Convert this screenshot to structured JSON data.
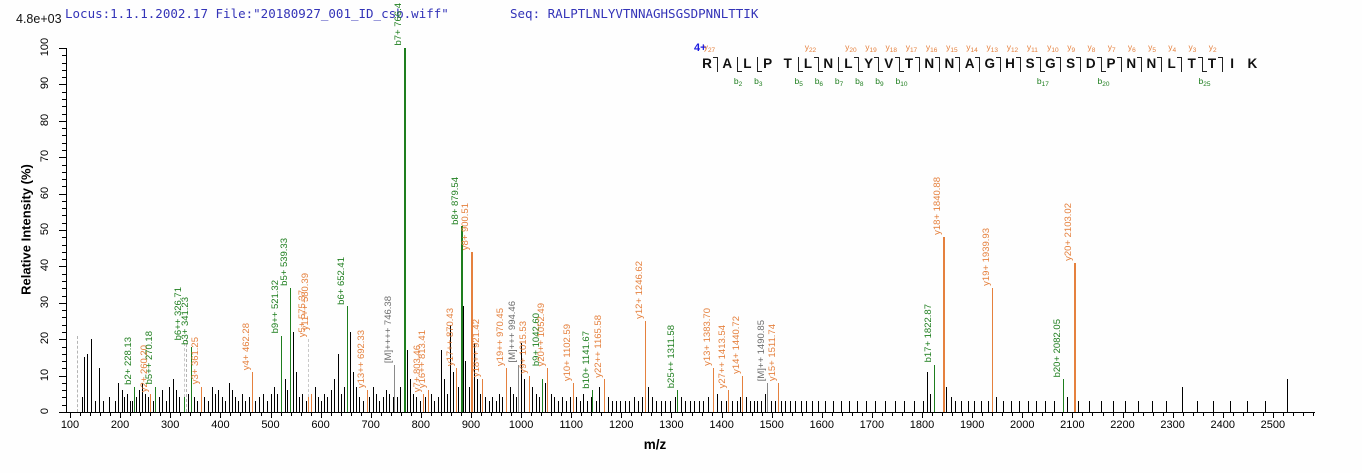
{
  "header": {
    "locus_text": "Locus:1.1.1.2002.17 File:\"20180927_001_ID_csb.wiff\"",
    "seq_prefix": "Seq: ",
    "sequence": "RALPTLNLYVTNNAGHSGSDPNNLTTIK"
  },
  "fragment_map": {
    "charge_label": "4+",
    "residues": [
      "R",
      "A",
      "L",
      "P",
      "T",
      "L",
      "N",
      "L",
      "Y",
      "V",
      "T",
      "N",
      "N",
      "A",
      "G",
      "H",
      "S",
      "G",
      "S",
      "D",
      "P",
      "N",
      "N",
      "L",
      "T",
      "T",
      "I",
      "K"
    ],
    "y_marks": [
      {
        "g": 1,
        "n": "27"
      },
      {
        "g": 6,
        "n": "22"
      },
      {
        "g": 8,
        "n": "20"
      },
      {
        "g": 9,
        "n": "19"
      },
      {
        "g": 10,
        "n": "18"
      },
      {
        "g": 11,
        "n": "17"
      },
      {
        "g": 12,
        "n": "16"
      },
      {
        "g": 13,
        "n": "15"
      },
      {
        "g": 14,
        "n": "14"
      },
      {
        "g": 15,
        "n": "13"
      },
      {
        "g": 16,
        "n": "12"
      },
      {
        "g": 17,
        "n": "11"
      },
      {
        "g": 18,
        "n": "10"
      },
      {
        "g": 19,
        "n": "9"
      },
      {
        "g": 20,
        "n": "8"
      },
      {
        "g": 21,
        "n": "7"
      },
      {
        "g": 22,
        "n": "6"
      },
      {
        "g": 23,
        "n": "5"
      },
      {
        "g": 24,
        "n": "4"
      },
      {
        "g": 25,
        "n": "3"
      },
      {
        "g": 26,
        "n": "2"
      }
    ],
    "b_marks": [
      {
        "g": 2,
        "n": "2"
      },
      {
        "g": 3,
        "n": "3"
      },
      {
        "g": 5,
        "n": "5"
      },
      {
        "g": 6,
        "n": "6"
      },
      {
        "g": 7,
        "n": "7"
      },
      {
        "g": 8,
        "n": "8"
      },
      {
        "g": 9,
        "n": "9"
      },
      {
        "g": 10,
        "n": "10"
      },
      {
        "g": 17,
        "n": "17"
      },
      {
        "g": 20,
        "n": "20"
      },
      {
        "g": 25,
        "n": "25"
      }
    ]
  },
  "colors": {
    "b_ion": "#1e7e1e",
    "y_ion": "#e5813e",
    "precursor_line": "#8a8a8a",
    "precursor_text": "#6e6e6e",
    "noise": "#000000",
    "header_text": "#3434b8",
    "charge_label": "#1a1ae0",
    "dashed": "#b5b5b5"
  },
  "chart_data": {
    "type": "bar",
    "subtype": "centroided MS/MS mass spectrum with b/y fragment ion annotations",
    "title": "",
    "xlabel": "m/z",
    "ylabel": "Relative  Intensity (%)",
    "y_max_label": "4.8e+03",
    "xlim": [
      90,
      2570
    ],
    "ylim": [
      0,
      100
    ],
    "x_major_tick_step": 100,
    "x_minor_tick_step": 20,
    "x_tick_label_min": 100,
    "x_tick_label_max": 2500,
    "y_major_tick_step": 10,
    "y_minor_tick_step": 2,
    "grid": false,
    "labeled_peaks": [
      {
        "type": "b",
        "label": "b2+ 228.13",
        "mz": 228.13,
        "pct": 7
      },
      {
        "type": "y",
        "label": "y2+ 260.20",
        "mz": 260.2,
        "pct": 5
      },
      {
        "type": "b",
        "label": "b5++ 270.18",
        "mz": 270.18,
        "pct": 7
      },
      {
        "type": "b",
        "label": "b6++ 326.71",
        "mz": 326.71,
        "pct": 4,
        "label_pct": 19,
        "leader": true
      },
      {
        "type": "b",
        "label": "b3+ 341.23",
        "mz": 341.23,
        "pct": 18
      },
      {
        "type": "y",
        "label": "y3+ 361.25",
        "mz": 361.25,
        "pct": 7
      },
      {
        "type": "y",
        "label": "y4+ 462.28",
        "mz": 462.28,
        "pct": 11
      },
      {
        "type": "b",
        "label": "b9++ 521.32",
        "mz": 521.32,
        "pct": 21
      },
      {
        "type": "b",
        "label": "b5+ 539.33",
        "mz": 539.33,
        "pct": 34
      },
      {
        "type": "y",
        "label": "y5+ 575.37",
        "mz": 575.37,
        "pct": 4,
        "label_pct": 20,
        "leader": true
      },
      {
        "type": "y",
        "label": "y11++ 580.39",
        "mz": 580.39,
        "pct": 5,
        "label_pct": 22
      },
      {
        "type": "b",
        "label": "b6+ 652.41",
        "mz": 652.41,
        "pct": 29
      },
      {
        "type": "y",
        "label": "y13++ 692.33",
        "mz": 692.33,
        "pct": 6
      },
      {
        "type": "M",
        "label": "[M]++++ 746.38",
        "mz": 746.38,
        "pct": 13
      },
      {
        "type": "b",
        "label": "b7+ 766.4",
        "mz": 766.4,
        "pct": 100
      },
      {
        "type": "y",
        "label": "y7+ 803.46",
        "mz": 803.46,
        "pct": 5
      },
      {
        "type": "y",
        "label": "y16++ 813.41",
        "mz": 813.41,
        "pct": 6
      },
      {
        "type": "y",
        "label": "y17++ 870.43",
        "mz": 870.43,
        "pct": 12
      },
      {
        "type": "b",
        "label": "b8+ 879.54",
        "mz": 879.54,
        "pct": 51
      },
      {
        "type": "y",
        "label": "y8+ 900.51",
        "mz": 900.51,
        "pct": 44
      },
      {
        "type": "y",
        "label": "y18++ 921.42",
        "mz": 921.42,
        "pct": 9
      },
      {
        "type": "y",
        "label": "y19++ 970.45",
        "mz": 970.45,
        "pct": 12
      },
      {
        "type": "M",
        "label": "[M]+++ 994.46",
        "mz": 994.46,
        "pct": 13
      },
      {
        "type": "y",
        "label": "y9+ 1015.53",
        "mz": 1015.53,
        "pct": 10
      },
      {
        "type": "b",
        "label": "b9+ 1042.60",
        "mz": 1042.6,
        "pct": 9,
        "label_pct": 12
      },
      {
        "type": "y",
        "label": "y20++ 1052.49",
        "mz": 1052.49,
        "pct": 12
      },
      {
        "type": "y",
        "label": "y10+ 1102.59",
        "mz": 1102.59,
        "pct": 8
      },
      {
        "type": "b",
        "label": "b10+ 1141.67",
        "mz": 1141.67,
        "pct": 6
      },
      {
        "type": "y",
        "label": "y22++ 1165.58",
        "mz": 1165.58,
        "pct": 9
      },
      {
        "type": "y",
        "label": "y12+ 1246.62",
        "mz": 1246.62,
        "pct": 25
      },
      {
        "type": "b",
        "label": "b25++ 1311.58",
        "mz": 1311.58,
        "pct": 6
      },
      {
        "type": "y",
        "label": "y13+ 1383.70",
        "mz": 1383.7,
        "pct": 12
      },
      {
        "type": "y",
        "label": "y27++ 1413.54",
        "mz": 1413.54,
        "pct": 6
      },
      {
        "type": "y",
        "label": "y14+ 1440.72",
        "mz": 1440.72,
        "pct": 10
      },
      {
        "type": "M",
        "label": "[M]++ 1490.85",
        "mz": 1490.85,
        "pct": 8
      },
      {
        "type": "y",
        "label": "y15+ 1511.74",
        "mz": 1511.74,
        "pct": 8
      },
      {
        "type": "b",
        "label": "b17+ 1822.87",
        "mz": 1822.87,
        "pct": 13
      },
      {
        "type": "y",
        "label": "y18+ 1840.88",
        "mz": 1840.88,
        "pct": 48
      },
      {
        "type": "y",
        "label": "y19+ 1939.93",
        "mz": 1939.93,
        "pct": 34
      },
      {
        "type": "b",
        "label": "b20+ 2082.05",
        "mz": 2082.05,
        "pct": 9
      },
      {
        "type": "y",
        "label": "y20+ 2103.02",
        "mz": 2103.02,
        "pct": 41
      }
    ],
    "dashed_peaks": [
      [
        114,
        21
      ],
      [
        331,
        20
      ]
    ],
    "unlabeled_peaks": [
      [
        123,
        4
      ],
      [
        128,
        15
      ],
      [
        134,
        16
      ],
      [
        141,
        20
      ],
      [
        150,
        3
      ],
      [
        157,
        12
      ],
      [
        166,
        3
      ],
      [
        178,
        4
      ],
      [
        190,
        3
      ],
      [
        196,
        8
      ],
      [
        203,
        6
      ],
      [
        208,
        4
      ],
      [
        214,
        5
      ],
      [
        220,
        3
      ],
      [
        224,
        3
      ],
      [
        232,
        4
      ],
      [
        238,
        6
      ],
      [
        244,
        8
      ],
      [
        250,
        5
      ],
      [
        256,
        4
      ],
      [
        265,
        3
      ],
      [
        277,
        4
      ],
      [
        284,
        6
      ],
      [
        291,
        3
      ],
      [
        298,
        7
      ],
      [
        305,
        9
      ],
      [
        312,
        6
      ],
      [
        318,
        4
      ],
      [
        336,
        5
      ],
      [
        347,
        4
      ],
      [
        354,
        3
      ],
      [
        368,
        4
      ],
      [
        376,
        3
      ],
      [
        383,
        7
      ],
      [
        389,
        5
      ],
      [
        395,
        6
      ],
      [
        403,
        4
      ],
      [
        410,
        3
      ],
      [
        417,
        8
      ],
      [
        423,
        6
      ],
      [
        429,
        4
      ],
      [
        436,
        3
      ],
      [
        443,
        5
      ],
      [
        450,
        3
      ],
      [
        458,
        4
      ],
      [
        470,
        3
      ],
      [
        477,
        4
      ],
      [
        485,
        5
      ],
      [
        492,
        3
      ],
      [
        500,
        5
      ],
      [
        507,
        7
      ],
      [
        513,
        5
      ],
      [
        528,
        9
      ],
      [
        533,
        6
      ],
      [
        545,
        22
      ],
      [
        551,
        11
      ],
      [
        557,
        4
      ],
      [
        563,
        5
      ],
      [
        570,
        3
      ],
      [
        588,
        7
      ],
      [
        594,
        4
      ],
      [
        601,
        3
      ],
      [
        607,
        5
      ],
      [
        613,
        4
      ],
      [
        620,
        6
      ],
      [
        627,
        9
      ],
      [
        634,
        16
      ],
      [
        640,
        5
      ],
      [
        647,
        7
      ],
      [
        658,
        22
      ],
      [
        664,
        11
      ],
      [
        671,
        7
      ],
      [
        677,
        4
      ],
      [
        684,
        3
      ],
      [
        697,
        4
      ],
      [
        704,
        7
      ],
      [
        711,
        5
      ],
      [
        717,
        3
      ],
      [
        724,
        4
      ],
      [
        731,
        6
      ],
      [
        737,
        5
      ],
      [
        744,
        4
      ],
      [
        753,
        4
      ],
      [
        759,
        7
      ],
      [
        772,
        17
      ],
      [
        779,
        9
      ],
      [
        785,
        5
      ],
      [
        791,
        4
      ],
      [
        798,
        3
      ],
      [
        808,
        4
      ],
      [
        821,
        5
      ],
      [
        827,
        3
      ],
      [
        834,
        4
      ],
      [
        841,
        17
      ],
      [
        847,
        9
      ],
      [
        853,
        5
      ],
      [
        858,
        24
      ],
      [
        864,
        11
      ],
      [
        875,
        7
      ],
      [
        884,
        29
      ],
      [
        889,
        14
      ],
      [
        895,
        7
      ],
      [
        906,
        19
      ],
      [
        912,
        9
      ],
      [
        918,
        5
      ],
      [
        928,
        4
      ],
      [
        935,
        3
      ],
      [
        942,
        4
      ],
      [
        949,
        3
      ],
      [
        956,
        5
      ],
      [
        962,
        4
      ],
      [
        977,
        7
      ],
      [
        984,
        5
      ],
      [
        990,
        4
      ],
      [
        1000,
        19
      ],
      [
        1005,
        9
      ],
      [
        1022,
        7
      ],
      [
        1029,
        5
      ],
      [
        1036,
        4
      ],
      [
        1047,
        8
      ],
      [
        1059,
        5
      ],
      [
        1066,
        4
      ],
      [
        1074,
        3
      ],
      [
        1082,
        4
      ],
      [
        1090,
        3
      ],
      [
        1097,
        4
      ],
      [
        1109,
        4
      ],
      [
        1117,
        3
      ],
      [
        1124,
        5
      ],
      [
        1132,
        3
      ],
      [
        1139,
        4
      ],
      [
        1149,
        3
      ],
      [
        1156,
        7
      ],
      [
        1173,
        4
      ],
      [
        1181,
        3
      ],
      [
        1190,
        3
      ],
      [
        1198,
        3
      ],
      [
        1207,
        3
      ],
      [
        1216,
        3
      ],
      [
        1225,
        4
      ],
      [
        1234,
        3
      ],
      [
        1242,
        4
      ],
      [
        1253,
        7
      ],
      [
        1261,
        4
      ],
      [
        1270,
        3
      ],
      [
        1279,
        3
      ],
      [
        1288,
        3
      ],
      [
        1297,
        3
      ],
      [
        1307,
        4
      ],
      [
        1319,
        4
      ],
      [
        1327,
        3
      ],
      [
        1336,
        3
      ],
      [
        1345,
        3
      ],
      [
        1354,
        3
      ],
      [
        1363,
        3
      ],
      [
        1372,
        4
      ],
      [
        1391,
        5
      ],
      [
        1399,
        3
      ],
      [
        1408,
        3
      ],
      [
        1421,
        3
      ],
      [
        1430,
        3
      ],
      [
        1436,
        4
      ],
      [
        1448,
        4
      ],
      [
        1456,
        3
      ],
      [
        1464,
        3
      ],
      [
        1471,
        3
      ],
      [
        1479,
        3
      ],
      [
        1486,
        5
      ],
      [
        1498,
        3
      ],
      [
        1506,
        3
      ],
      [
        1519,
        3
      ],
      [
        1527,
        3
      ],
      [
        1536,
        3
      ],
      [
        1547,
        3
      ],
      [
        1558,
        3
      ],
      [
        1569,
        3
      ],
      [
        1581,
        3
      ],
      [
        1593,
        3
      ],
      [
        1607,
        3
      ],
      [
        1622,
        3
      ],
      [
        1638,
        3
      ],
      [
        1654,
        3
      ],
      [
        1671,
        3
      ],
      [
        1689,
        3
      ],
      [
        1707,
        3
      ],
      [
        1726,
        3
      ],
      [
        1745,
        3
      ],
      [
        1764,
        3
      ],
      [
        1783,
        3
      ],
      [
        1802,
        3
      ],
      [
        1810,
        11
      ],
      [
        1815,
        5
      ],
      [
        1848,
        7
      ],
      [
        1857,
        4
      ],
      [
        1866,
        3
      ],
      [
        1878,
        3
      ],
      [
        1891,
        3
      ],
      [
        1904,
        3
      ],
      [
        1917,
        3
      ],
      [
        1931,
        3
      ],
      [
        1947,
        4
      ],
      [
        1962,
        3
      ],
      [
        1978,
        3
      ],
      [
        1994,
        3
      ],
      [
        2011,
        3
      ],
      [
        2028,
        3
      ],
      [
        2046,
        3
      ],
      [
        2064,
        3
      ],
      [
        2090,
        4
      ],
      [
        2111,
        3
      ],
      [
        2133,
        3
      ],
      [
        2156,
        3
      ],
      [
        2180,
        3
      ],
      [
        2205,
        3
      ],
      [
        2231,
        3
      ],
      [
        2258,
        3
      ],
      [
        2286,
        3
      ],
      [
        2318,
        7
      ],
      [
        2348,
        3
      ],
      [
        2380,
        3
      ],
      [
        2414,
        3
      ],
      [
        2449,
        3
      ],
      [
        2485,
        3
      ],
      [
        2528,
        9
      ]
    ],
    "legend": null,
    "annotation_note": "green = b ions, orange = y ions, gray = precursor [M] charge states, black = unassigned peaks"
  }
}
